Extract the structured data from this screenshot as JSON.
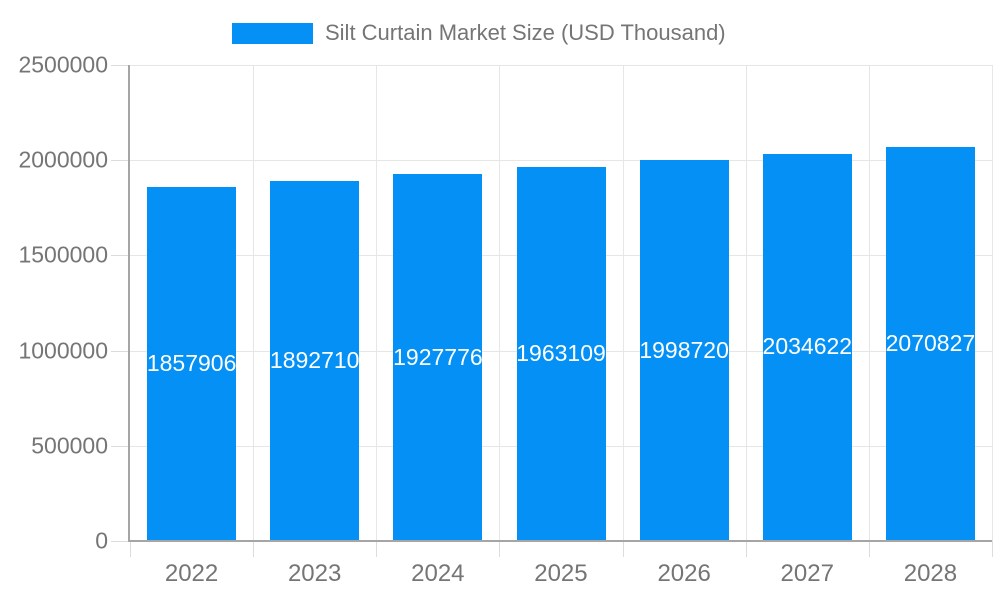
{
  "legend": {
    "label": "Silt Curtain Market Size (USD Thousand)"
  },
  "chart_data": {
    "type": "bar",
    "title": "Silt Curtain Market Size (USD Thousand)",
    "categories": [
      "2022",
      "2023",
      "2024",
      "2025",
      "2026",
      "2027",
      "2028"
    ],
    "values": [
      1857906,
      1892710,
      1927776,
      1963109,
      1998720,
      2034622,
      2070827
    ],
    "xlabel": "",
    "ylabel": "",
    "ylim": [
      0,
      2500000
    ],
    "y_ticks": [
      0,
      500000,
      1000000,
      1500000,
      2000000,
      2500000
    ],
    "grid": true,
    "legend_position": "top",
    "value_labels_position": "inside-center",
    "colors": {
      "bar": "#0590f5",
      "text": "#757575",
      "grid": "#e6e6e6",
      "tick": "#dcdcdc",
      "axis": "#a5a5a5",
      "value_label": "#ffffff",
      "background": "#ffffff"
    }
  }
}
